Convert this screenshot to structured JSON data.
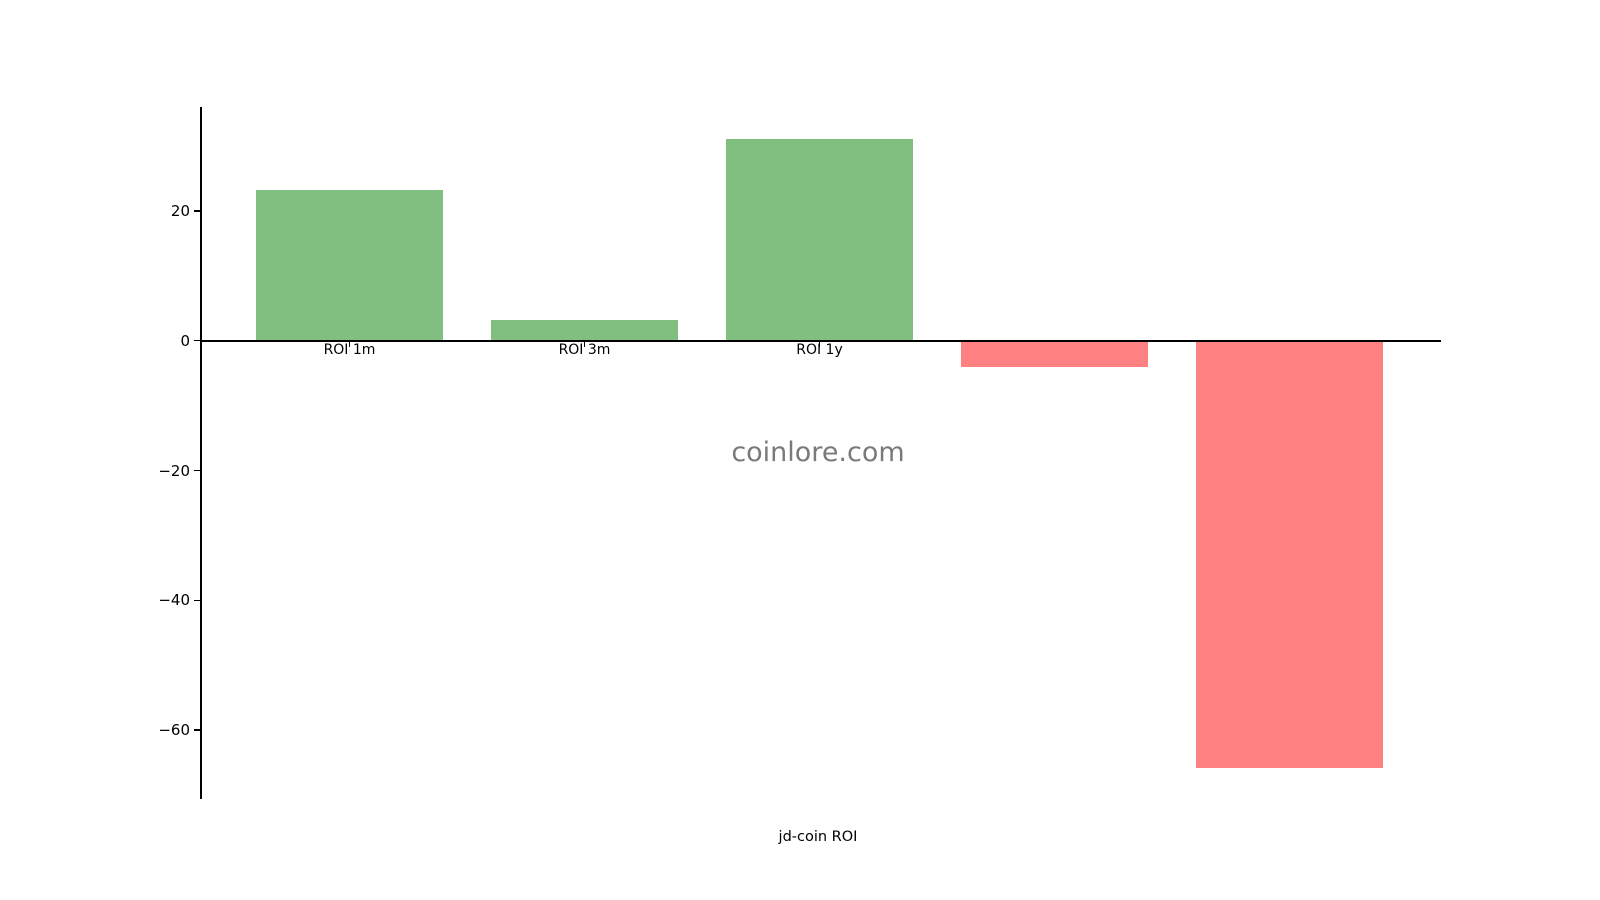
{
  "chart_data": {
    "type": "bar",
    "title": "",
    "xlabel": "jd-coin ROI",
    "ylabel": "",
    "watermark": "coinlore.com",
    "categories": [
      "ROI 1m",
      "ROI 3m",
      "ROI 1y",
      "",
      ""
    ],
    "values": [
      23.2,
      3.2,
      31.1,
      -4.0,
      -65.8
    ],
    "bar_colors": [
      "#80BF80",
      "#80BF80",
      "#80BF80",
      "#FF8080",
      "#FF8080"
    ],
    "positive_color": "#80BF80",
    "negative_color": "#FF8080",
    "yticks": [
      20,
      0,
      -20,
      -40,
      -60
    ],
    "ylim": [
      -70.5,
      35.9
    ],
    "grid": false,
    "legend": false,
    "axis_color": "#000000",
    "watermark_color": "#7a7a7a"
  }
}
